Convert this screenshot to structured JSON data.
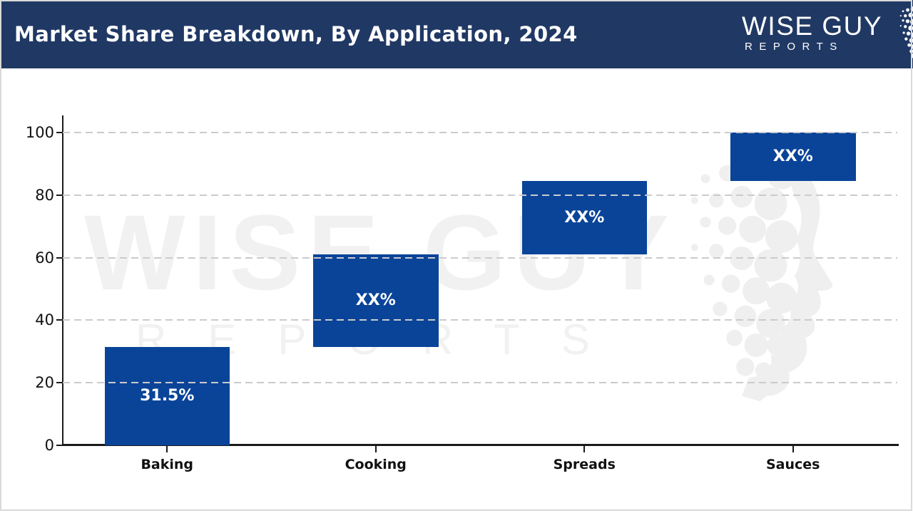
{
  "header": {
    "title": "Market Share Breakdown, By Application, 2024",
    "brand": {
      "name": "WISE GUY",
      "sub": "REPORTS"
    }
  },
  "watermark": {
    "name": "WISE GUY",
    "sub": "REPORTS"
  },
  "chart_data": {
    "type": "bar",
    "subtype": "waterfall",
    "title": "Market Share Breakdown, By Application, 2024",
    "categories": [
      "Baking",
      "Cooking",
      "Spreads",
      "Sauces"
    ],
    "segments": [
      {
        "category": "Baking",
        "start": 0,
        "end": 31.5,
        "label": "31.5%"
      },
      {
        "category": "Cooking",
        "start": 31.5,
        "end": 61,
        "label": "XX%"
      },
      {
        "category": "Spreads",
        "start": 61,
        "end": 84.5,
        "label": "XX%"
      },
      {
        "category": "Sauces",
        "start": 84.5,
        "end": 100,
        "label": "XX%"
      }
    ],
    "y_ticks": [
      0,
      20,
      40,
      60,
      80,
      100
    ],
    "ylim": [
      0,
      106
    ],
    "xlabel": "",
    "ylabel": "",
    "grid": "horizontal-dashed-on-top",
    "legend_position": "none",
    "bar_color": "#0a4499",
    "bar_label_color": "#ffffff",
    "axis_color": "#1a1a1a",
    "gridline_color": "#cbcbcb",
    "header_bg": "#203864",
    "watermark_color": "#f1f1f1"
  }
}
